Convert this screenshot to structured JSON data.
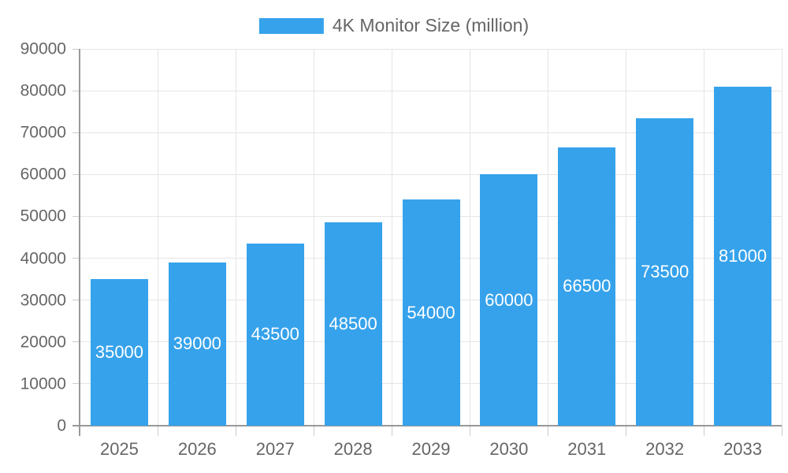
{
  "chart_data": {
    "type": "bar",
    "title": "",
    "xlabel": "",
    "ylabel": "",
    "categories": [
      "2025",
      "2026",
      "2027",
      "2028",
      "2029",
      "2030",
      "2031",
      "2032",
      "2033"
    ],
    "series": [
      {
        "name": "4K Monitor Size (million)",
        "values": [
          35000,
          39000,
          43500,
          48500,
          54000,
          60000,
          66500,
          73500,
          81000
        ]
      }
    ],
    "bar_value_labels": [
      "35000",
      "39000",
      "43500",
      "48500",
      "54000",
      "60000",
      "66500",
      "73500",
      "81000"
    ],
    "bar_value_labels_position": "center-inside",
    "ylim": [
      0,
      90000
    ],
    "y_ticks": [
      0,
      10000,
      20000,
      30000,
      40000,
      50000,
      60000,
      70000,
      80000,
      90000
    ],
    "y_tick_labels": [
      "0",
      "10000",
      "20000",
      "30000",
      "40000",
      "50000",
      "60000",
      "70000",
      "80000",
      "90000"
    ],
    "grid": true,
    "legend_position": "top-center",
    "colors": {
      "bar": "#36a2eb",
      "bar_value_text": "#ffffff",
      "legend_swatch": "#36a2eb",
      "legend_text": "#666666",
      "tick_label_text": "#666666",
      "axis_line": "#999999",
      "grid_line": "#e5e5e5",
      "tick_mark": "#cccccc",
      "background": "#ffffff"
    }
  }
}
